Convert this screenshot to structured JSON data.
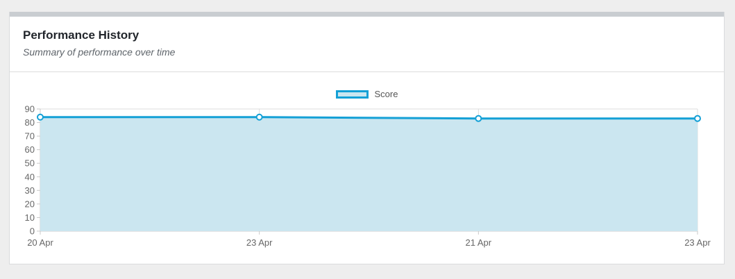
{
  "page": {
    "background_color": "#eeeeee"
  },
  "card": {
    "title": "Performance History",
    "subtitle": "Summary of performance over time",
    "accent_bar_color": "#c9cdd1"
  },
  "chart_data": {
    "type": "area",
    "categories": [
      "20 Apr",
      "23 Apr",
      "21 Apr",
      "23 Apr"
    ],
    "series": [
      {
        "name": "Score",
        "values": [
          84,
          84,
          83,
          83
        ]
      }
    ],
    "ylim": [
      0,
      90
    ],
    "ytick_step": 10,
    "yticks": [
      0,
      10,
      20,
      30,
      40,
      50,
      60,
      70,
      80,
      90
    ],
    "grid": true,
    "legend_position": "top-center",
    "marker": "hollow-circle",
    "colors": {
      "line": "#14a0d6",
      "fill": "#cbe6f0",
      "marker_fill": "#ffffff",
      "grid": "#dddddd",
      "axis": "#c9c9c9",
      "tick_label": "#666666"
    }
  }
}
